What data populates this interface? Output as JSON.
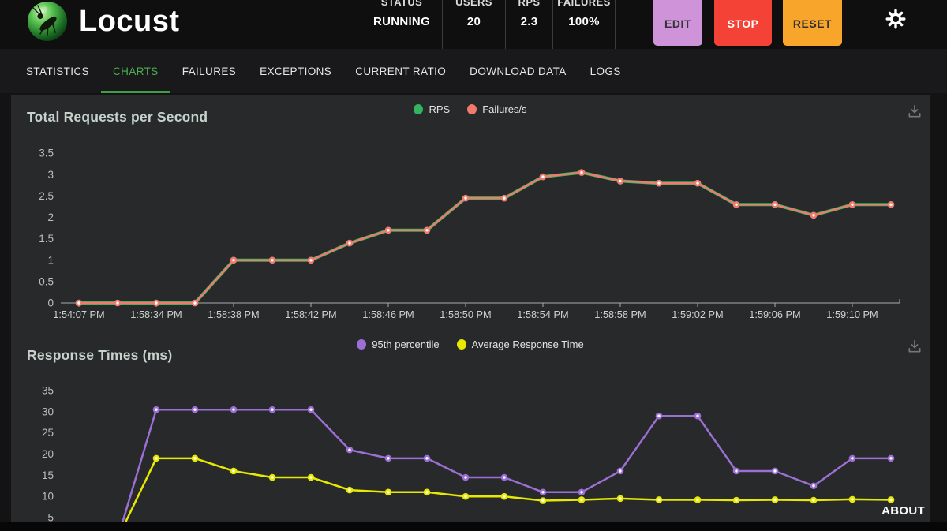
{
  "app": {
    "name": "Locust"
  },
  "header": {
    "stats": [
      {
        "label": "STATUS",
        "value": "RUNNING"
      },
      {
        "label": "USERS",
        "value": "20"
      },
      {
        "label": "RPS",
        "value": "2.3"
      },
      {
        "label": "FAILURES",
        "value": "100%"
      }
    ],
    "buttons": {
      "edit": "EDIT",
      "stop": "STOP",
      "reset": "RESET"
    }
  },
  "nav": {
    "tabs": [
      {
        "label": "STATISTICS",
        "active": false
      },
      {
        "label": "CHARTS",
        "active": true
      },
      {
        "label": "FAILURES",
        "active": false
      },
      {
        "label": "EXCEPTIONS",
        "active": false
      },
      {
        "label": "CURRENT RATIO",
        "active": false
      },
      {
        "label": "DOWNLOAD DATA",
        "active": false
      },
      {
        "label": "LOGS",
        "active": false
      }
    ]
  },
  "footer": {
    "about": "ABOUT"
  },
  "colors": {
    "accent_green": "#4caf50",
    "rps_line": "#33b45f",
    "failures_line": "#f07a6e",
    "p95_line": "#9b6fd4",
    "avg_line": "#e7e900",
    "edit_button": "#ce93d8",
    "stop_button": "#f44336",
    "reset_button": "#f7a62b"
  },
  "chart_data": [
    {
      "type": "line",
      "title": "Total Requests per Second",
      "legend": [
        {
          "label": "RPS",
          "color": "#33b45f"
        },
        {
          "label": "Failures/s",
          "color": "#f07a6e"
        }
      ],
      "legend_position": "top-center",
      "grid": false,
      "ylim": [
        0,
        3.5
      ],
      "y_ticks": [
        0,
        0.5,
        1,
        1.5,
        2,
        2.5,
        3,
        3.5
      ],
      "x_tick_labels": [
        "1:54:07 PM",
        "1:58:34 PM",
        "1:58:38 PM",
        "1:58:42 PM",
        "1:58:46 PM",
        "1:58:50 PM",
        "1:58:54 PM",
        "1:58:58 PM",
        "1:59:02 PM",
        "1:59:06 PM",
        "1:59:10 PM"
      ],
      "label_every_n_points": 2,
      "x_axis_visible": true,
      "series": [
        {
          "name": "RPS",
          "color": "#33b45f",
          "values": [
            0,
            0,
            0,
            0,
            1,
            1,
            1,
            1.4,
            1.7,
            1.7,
            2.45,
            2.45,
            2.95,
            3.05,
            2.85,
            2.8,
            2.8,
            2.3,
            2.3,
            2.05,
            2.3,
            2.3
          ]
        },
        {
          "name": "Failures/s",
          "color": "#f07a6e",
          "values": [
            0,
            0,
            0,
            0,
            1,
            1,
            1,
            1.4,
            1.7,
            1.7,
            2.45,
            2.45,
            2.95,
            3.05,
            2.85,
            2.8,
            2.8,
            2.3,
            2.3,
            2.05,
            2.3,
            2.3
          ]
        }
      ]
    },
    {
      "type": "line",
      "title": "Response Times (ms)",
      "legend": [
        {
          "label": "95th percentile",
          "color": "#9b6fd4"
        },
        {
          "label": "Average Response Time",
          "color": "#e7e900"
        }
      ],
      "legend_position": "top-center",
      "grid": false,
      "ylim": [
        0,
        35
      ],
      "y_ticks": [
        5,
        10,
        15,
        20,
        25,
        30,
        35
      ],
      "x_axis_visible": false,
      "series": [
        {
          "name": "95th percentile",
          "color": "#9b6fd4",
          "values": [
            0,
            0,
            30.5,
            30.5,
            30.5,
            30.5,
            30.5,
            21,
            19,
            19,
            14.5,
            14.5,
            11,
            11,
            16,
            29,
            29,
            16,
            16,
            12.5,
            19,
            19
          ]
        },
        {
          "name": "Average Response Time",
          "color": "#e7e900",
          "values": [
            0,
            0,
            19,
            19,
            16,
            14.5,
            14.5,
            11.5,
            11,
            11,
            10,
            10,
            9,
            9.2,
            9.5,
            9.2,
            9.2,
            9.1,
            9.2,
            9.1,
            9.3,
            9.2
          ]
        }
      ]
    }
  ]
}
